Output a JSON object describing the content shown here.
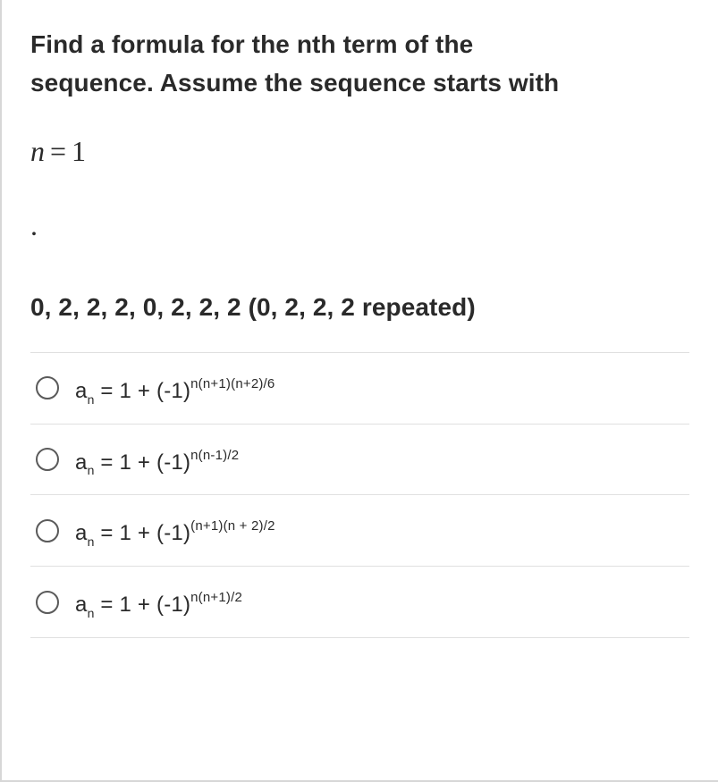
{
  "question": {
    "line1": "Find a formula for the nth term of the",
    "line2": "sequence.  Assume the sequence starts with",
    "math_var": "n",
    "math_eq": "=",
    "math_val": "1",
    "dot": ".",
    "sequence": "0, 2, 2, 2, 0, 2, 2, 2 (0, 2, 2, 2 repeated)"
  },
  "options": [
    {
      "a": "a",
      "sub": "n",
      "mid": " = 1 + (-1)",
      "sup": "n(n+1)(n+2)/6"
    },
    {
      "a": "a",
      "sub": "n",
      "mid": " = 1 + (-1)",
      "sup": "n(n-1)/2"
    },
    {
      "a": "a",
      "sub": "n",
      "mid": " = 1 + (-1)",
      "sup": "(n+1)(n + 2)/2"
    },
    {
      "a": "a",
      "sub": "n",
      "mid": " = 1 + (-1)",
      "sup": "n(n+1)/2"
    }
  ],
  "colors": {
    "text": "#2a2a2a",
    "border": "#d7d7d7",
    "divider": "#e0e0e0",
    "radio_border": "#5a5a5a",
    "background": "#ffffff"
  },
  "fontsize": {
    "question": 28,
    "math": 32,
    "formula": 24,
    "sub": 14,
    "sup": 15
  }
}
